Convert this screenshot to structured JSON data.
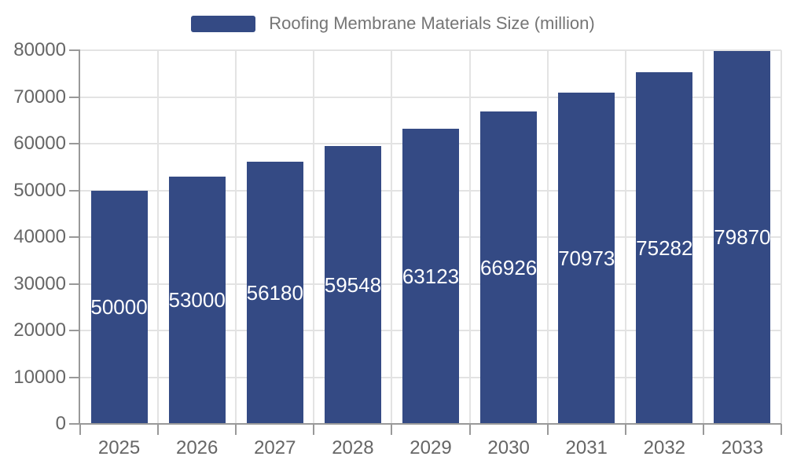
{
  "chart_data": {
    "type": "bar",
    "title": "",
    "legend_label": "Roofing Membrane Materials Size (million)",
    "legend_position": "top",
    "categories": [
      "2025",
      "2026",
      "2027",
      "2028",
      "2029",
      "2030",
      "2031",
      "2032",
      "2033"
    ],
    "values": [
      50000,
      53000,
      56180,
      59548,
      63123,
      66926,
      70973,
      75282,
      79870
    ],
    "xlabel": "",
    "ylabel": "",
    "ylim": [
      0,
      80000
    ],
    "ytick_step": 10000,
    "ytick_labels": [
      "0",
      "10000",
      "20000",
      "30000",
      "40000",
      "50000",
      "60000",
      "70000",
      "80000"
    ],
    "grid": true,
    "value_labels_position": "inside-center",
    "colors": {
      "bar": "#344a84",
      "grid": "#e3e3e3",
      "axis": "#999999",
      "axis_text": "#666666",
      "legend_text": "#757575",
      "value_label": "#ffffff",
      "background": "#ffffff"
    }
  }
}
